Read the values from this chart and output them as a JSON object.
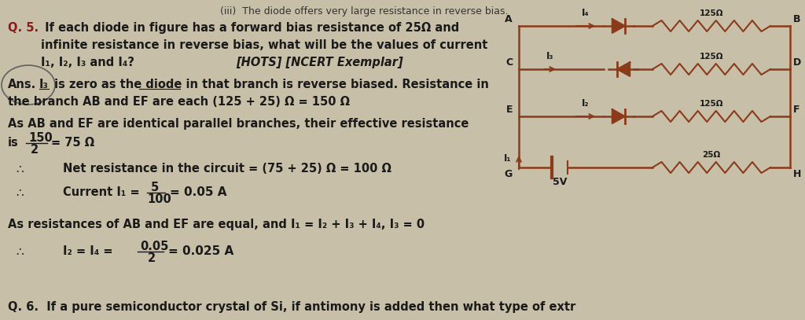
{
  "bg_color": "#c8bfa8",
  "text_color": "#1a1a1a",
  "bold_color": "#8b1a1a",
  "circuit_color": "#8b3a1a",
  "q5_prefix": "Q. 5.",
  "q5_line1": " If each diode in figure has a forward bias resistance of 25Ω and",
  "q5_line2": "infinite resistance in reverse bias, what will be the values of current",
  "q5_line3a": "I₁, I₂, I₃ and I₄?",
  "q5_line3b": "[HOTS] [NCERT Exemplar]",
  "ans_label": "Ans.",
  "ans_i3": "I₃",
  "ans_rest": " is zero as the diode in that branch is reverse biased. Resistance in",
  "ans_line2": "the branch AB and EF are each (125 + 25) Ω = 150 Ω",
  "line_parallel": "As AB and EF are identical parallel branches, their effective resistance",
  "line_is": "is",
  "frac1_num": "150",
  "frac1_den": "2",
  "frac1_eq": "= 75 Ω",
  "line_net_pre": "∴",
  "line_net": "Net resistance in the circuit = (75 + 25) Ω = 100 Ω",
  "line_curr_pre": "∴",
  "line_curr_mid": "Current I₁ =",
  "frac2_num": "5",
  "frac2_den": "100",
  "frac2_eq": "= 0.05 A",
  "line_res": "As resistances of AB and EF are equal, and I₁ = I₂ + I₃ + I₄, I₃ = 0",
  "line_i2_pre": "∴",
  "line_i2_mid": "I₂ = I₄ =",
  "frac3_num": "0.05",
  "frac3_den": "2",
  "frac3_eq": "= 0.025 A",
  "bottom_line": "Q. 6.  If a pure semiconductor crystal of Si, if antimony is added then what type of extr",
  "top_partial": "(iii)  The diode offers very large resistance in reverse bias.",
  "res125": "125Ω",
  "res25": "25Ω",
  "volt5": "5V",
  "nodes": [
    "A",
    "B",
    "C",
    "D",
    "E",
    "F",
    "G",
    "H"
  ],
  "currents": [
    "I₄",
    "I₃",
    "I₂",
    "I₁"
  ]
}
